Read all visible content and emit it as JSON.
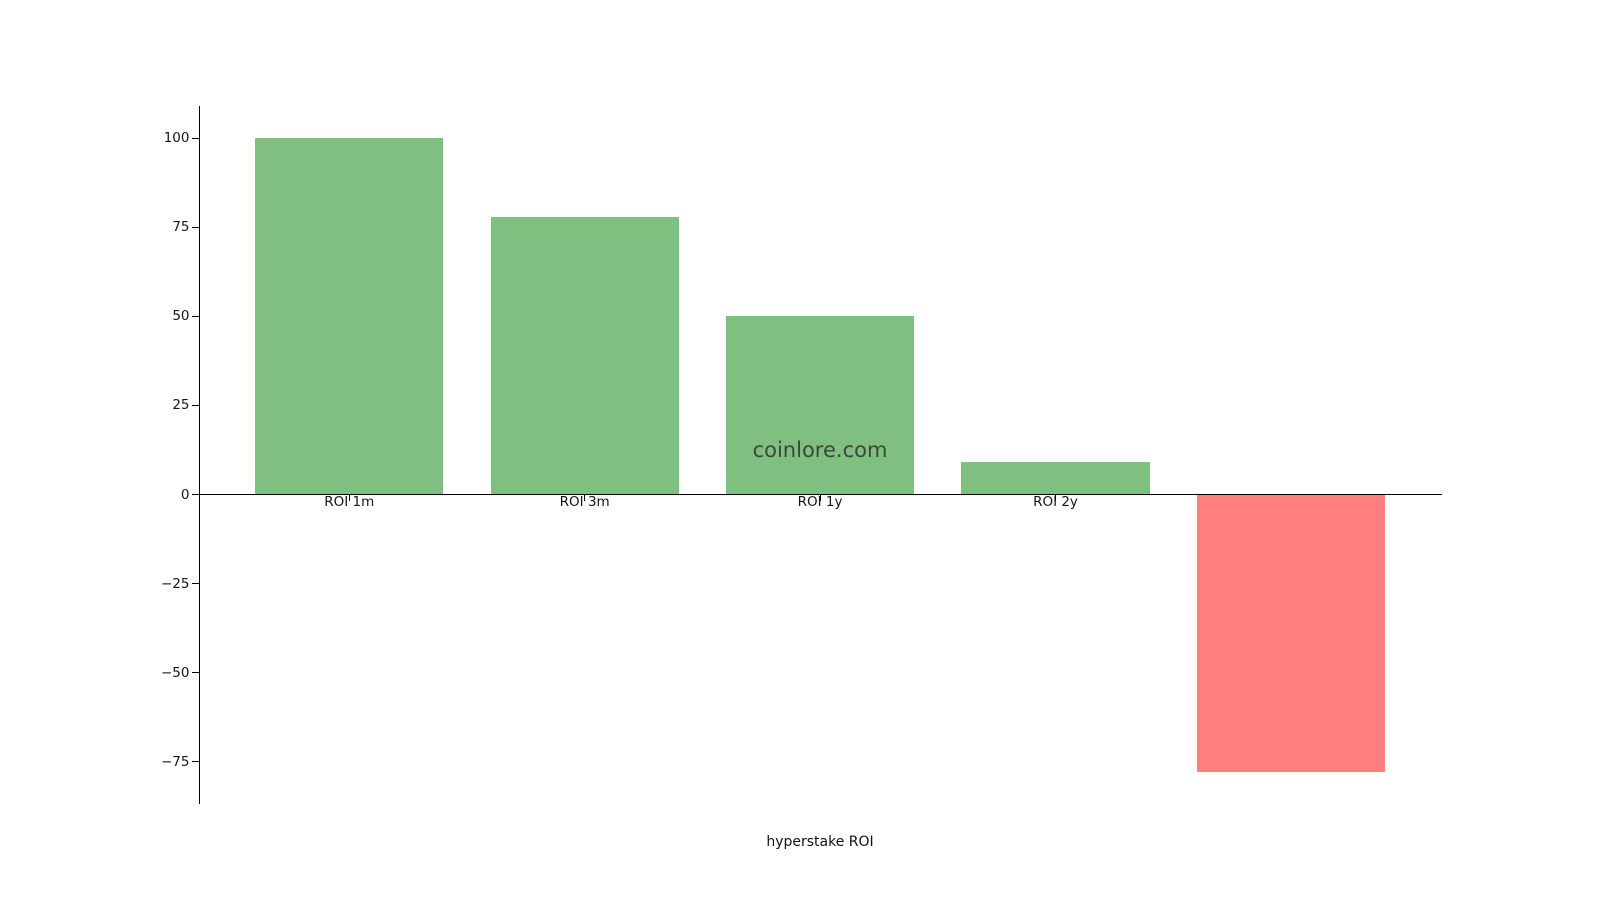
{
  "figure": {
    "background": "#ffffff",
    "watermark": {
      "text": "coinlore.com",
      "color": "#3d473d"
    },
    "caption": "hyperstake ROI"
  },
  "chart_data": {
    "type": "bar",
    "title": "",
    "xlabel": "hyperstake ROI",
    "ylabel": "",
    "categories": [
      "ROI 1m",
      "ROI 3m",
      "ROI 1y",
      "ROI 2y",
      ""
    ],
    "values": [
      100,
      78,
      50,
      9,
      -78
    ],
    "yticks": [
      100,
      75,
      50,
      25,
      0,
      -25,
      -50,
      -75
    ],
    "ylim": [
      -86.9,
      108.9
    ],
    "grid": false,
    "legend": "none",
    "bar_color_positive": "#7fbf7f",
    "bar_color_negative": "#ff7f7f",
    "axis_color": "#000000",
    "tick_label_color": "#161616"
  }
}
